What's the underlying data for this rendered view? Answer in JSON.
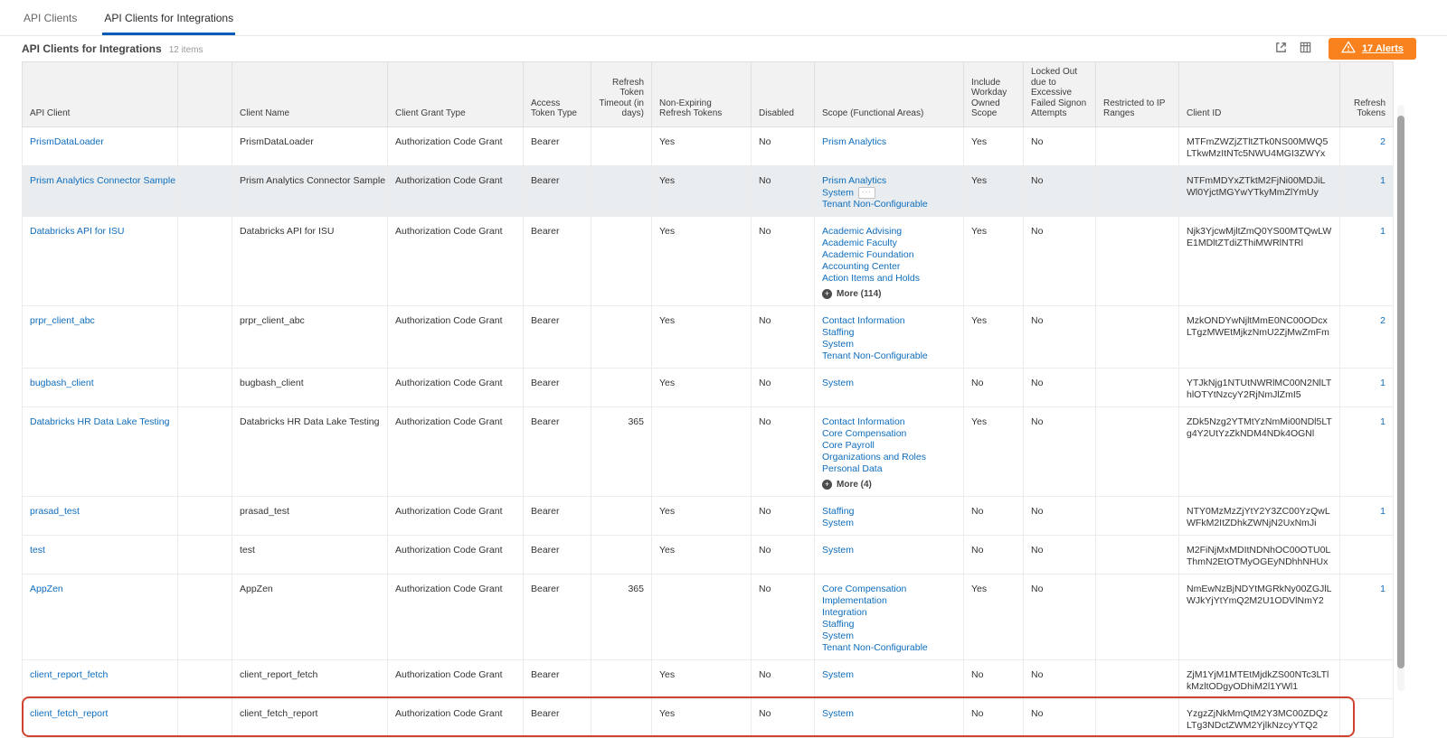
{
  "tabs": [
    {
      "label": "API Clients",
      "active": false
    },
    {
      "label": "API Clients for Integrations",
      "active": true
    }
  ],
  "toolbar": {
    "title": "API Clients for Integrations",
    "item_count": "12 items",
    "alerts_label": "17 Alerts",
    "icons": [
      "export-icon",
      "grid-icon",
      "alert-triangle-icon"
    ]
  },
  "colors": {
    "link": "#0e6dbd",
    "alert_orange": "#f9821e",
    "highlight_red": "#d0432e",
    "tab_active_underline": "#005cb9",
    "shaded_row": "#e9edf0"
  },
  "table": {
    "columns": [
      {
        "label": "API Client",
        "align": "left"
      },
      {
        "label": "",
        "align": "left"
      },
      {
        "label": "Client Name",
        "align": "left"
      },
      {
        "label": "Client Grant Type",
        "align": "left"
      },
      {
        "label": "Access Token Type",
        "align": "left"
      },
      {
        "label": "Refresh Token Timeout (in days)",
        "align": "right"
      },
      {
        "label": "Non-Expiring Refresh Tokens",
        "align": "left"
      },
      {
        "label": "Disabled",
        "align": "left"
      },
      {
        "label": "Scope (Functional Areas)",
        "align": "left"
      },
      {
        "label": "Include Workday Owned Scope",
        "align": "left"
      },
      {
        "label": "Locked Out due to Excessive Failed Signon Attempts",
        "align": "left"
      },
      {
        "label": "Restricted to IP Ranges",
        "align": "left"
      },
      {
        "label": "Client ID",
        "align": "left"
      },
      {
        "label": "Refresh Tokens",
        "align": "right"
      }
    ],
    "rows": [
      {
        "api_client": "PrismDataLoader",
        "client_name": "PrismDataLoader",
        "grant_type": "Authorization Code Grant",
        "token_type": "Bearer",
        "timeout_days": "",
        "non_expiring": "Yes",
        "disabled": "No",
        "scopes": [
          "Prism Analytics"
        ],
        "more": "",
        "include_workday_scope": "Yes",
        "locked_out": "No",
        "restricted_ip": "",
        "client_id": "MTFmZWZjZTltZTk0NS00MWQ5LTkwMzItNTc5NWU4MGI3ZWYx",
        "refresh_tokens": "2",
        "shaded": false,
        "highlighted": false
      },
      {
        "api_client": "Prism Analytics Connector Sample",
        "client_name": "Prism Analytics Connector Sample",
        "grant_type": "Authorization Code Grant",
        "token_type": "Bearer",
        "timeout_days": "",
        "non_expiring": "Yes",
        "disabled": "No",
        "scopes": [
          "Prism Analytics",
          "System",
          "Tenant Non-Configurable"
        ],
        "scope_ellipsis_index": 1,
        "more": "",
        "include_workday_scope": "Yes",
        "locked_out": "No",
        "restricted_ip": "",
        "client_id": "NTFmMDYxZTktM2FjNi00MDJiLWl0YjctMGYwYTkyMmZlYmUy",
        "refresh_tokens": "1",
        "shaded": true,
        "highlighted": false
      },
      {
        "api_client": "Databricks API for ISU",
        "client_name": "Databricks API for ISU",
        "grant_type": "Authorization Code Grant",
        "token_type": "Bearer",
        "timeout_days": "",
        "non_expiring": "Yes",
        "disabled": "No",
        "scopes": [
          "Academic Advising",
          "Academic Faculty",
          "Academic Foundation",
          "Accounting Center",
          "Action Items and Holds"
        ],
        "more": "More (114)",
        "include_workday_scope": "Yes",
        "locked_out": "No",
        "restricted_ip": "",
        "client_id": "Njk3YjcwMjltZmQ0YS00MTQwLWE1MDltZTdiZThiMWRlNTRl",
        "refresh_tokens": "1",
        "shaded": false,
        "highlighted": false
      },
      {
        "api_client": "prpr_client_abc",
        "client_name": "prpr_client_abc",
        "grant_type": "Authorization Code Grant",
        "token_type": "Bearer",
        "timeout_days": "",
        "non_expiring": "Yes",
        "disabled": "No",
        "scopes": [
          "Contact Information",
          "Staffing",
          "System",
          "Tenant Non-Configurable"
        ],
        "more": "",
        "include_workday_scope": "Yes",
        "locked_out": "No",
        "restricted_ip": "",
        "client_id": "MzkONDYwNjltMmE0NC00ODcxLTgzMWEtMjkzNmU2ZjMwZmFm",
        "refresh_tokens": "2",
        "shaded": false,
        "highlighted": false
      },
      {
        "api_client": "bugbash_client",
        "client_name": "bugbash_client",
        "grant_type": "Authorization Code Grant",
        "token_type": "Bearer",
        "timeout_days": "",
        "non_expiring": "Yes",
        "disabled": "No",
        "scopes": [
          "System"
        ],
        "more": "",
        "include_workday_scope": "No",
        "locked_out": "No",
        "restricted_ip": "",
        "client_id": "YTJkNjg1NTUtNWRlMC00N2NlLThlOTYtNzcyY2RjNmJlZmI5",
        "refresh_tokens": "1",
        "shaded": false,
        "highlighted": false
      },
      {
        "api_client": "Databricks HR Data Lake Testing",
        "client_name": "Databricks HR Data Lake Testing",
        "grant_type": "Authorization Code Grant",
        "token_type": "Bearer",
        "timeout_days": "365",
        "non_expiring": "",
        "disabled": "No",
        "scopes": [
          "Contact Information",
          "Core Compensation",
          "Core Payroll",
          "Organizations and Roles",
          "Personal Data"
        ],
        "more": "More (4)",
        "include_workday_scope": "Yes",
        "locked_out": "No",
        "restricted_ip": "",
        "client_id": "ZDk5Nzg2YTMtYzNmMi00NDl5LTg4Y2UtYzZkNDM4NDk4OGNl",
        "refresh_tokens": "1",
        "shaded": false,
        "highlighted": false
      },
      {
        "api_client": "prasad_test",
        "client_name": "prasad_test",
        "grant_type": "Authorization Code Grant",
        "token_type": "Bearer",
        "timeout_days": "",
        "non_expiring": "Yes",
        "disabled": "No",
        "scopes": [
          "Staffing",
          "System"
        ],
        "more": "",
        "include_workday_scope": "No",
        "locked_out": "No",
        "restricted_ip": "",
        "client_id": "NTY0MzMzZjYtY2Y3ZC00YzQwLWFkM2ItZDhkZWNjN2UxNmJi",
        "refresh_tokens": "1",
        "shaded": false,
        "highlighted": false
      },
      {
        "api_client": "test",
        "client_name": "test",
        "grant_type": "Authorization Code Grant",
        "token_type": "Bearer",
        "timeout_days": "",
        "non_expiring": "Yes",
        "disabled": "No",
        "scopes": [
          "System"
        ],
        "more": "",
        "include_workday_scope": "No",
        "locked_out": "No",
        "restricted_ip": "",
        "client_id": "M2FiNjMxMDItNDNhOC00OTU0LThmN2EtOTMyOGEyNDhhNHUx",
        "refresh_tokens": "",
        "shaded": false,
        "highlighted": false
      },
      {
        "api_client": "AppZen",
        "client_name": "AppZen",
        "grant_type": "Authorization Code Grant",
        "token_type": "Bearer",
        "timeout_days": "365",
        "non_expiring": "",
        "disabled": "No",
        "scopes": [
          "Core Compensation",
          "Implementation",
          "Integration",
          "Staffing",
          "System",
          "Tenant Non-Configurable"
        ],
        "more": "",
        "include_workday_scope": "Yes",
        "locked_out": "No",
        "restricted_ip": "",
        "client_id": "NmEwNzBjNDYtMGRkNy00ZGJlLWJkYjYtYmQ2M2U1ODVlNmY2",
        "refresh_tokens": "1",
        "shaded": false,
        "highlighted": false
      },
      {
        "api_client": "client_report_fetch",
        "client_name": "client_report_fetch",
        "grant_type": "Authorization Code Grant",
        "token_type": "Bearer",
        "timeout_days": "",
        "non_expiring": "Yes",
        "disabled": "No",
        "scopes": [
          "System"
        ],
        "more": "",
        "include_workday_scope": "No",
        "locked_out": "No",
        "restricted_ip": "",
        "client_id": "ZjM1YjM1MTEtMjdkZS00NTc3LTlkMzltODgyODhiM2l1YWl1",
        "refresh_tokens": "",
        "shaded": false,
        "highlighted": false
      },
      {
        "api_client": "client_fetch_report",
        "client_name": "client_fetch_report",
        "grant_type": "Authorization Code Grant",
        "token_type": "Bearer",
        "timeout_days": "",
        "non_expiring": "Yes",
        "disabled": "No",
        "scopes": [
          "System"
        ],
        "more": "",
        "include_workday_scope": "No",
        "locked_out": "No",
        "restricted_ip": "",
        "client_id": "YzgzZjNkMmQtM2Y3MC00ZDQzLTg3NDctZWM2YjlkNzcyYTQ2",
        "refresh_tokens": "",
        "shaded": false,
        "highlighted": true
      }
    ]
  }
}
